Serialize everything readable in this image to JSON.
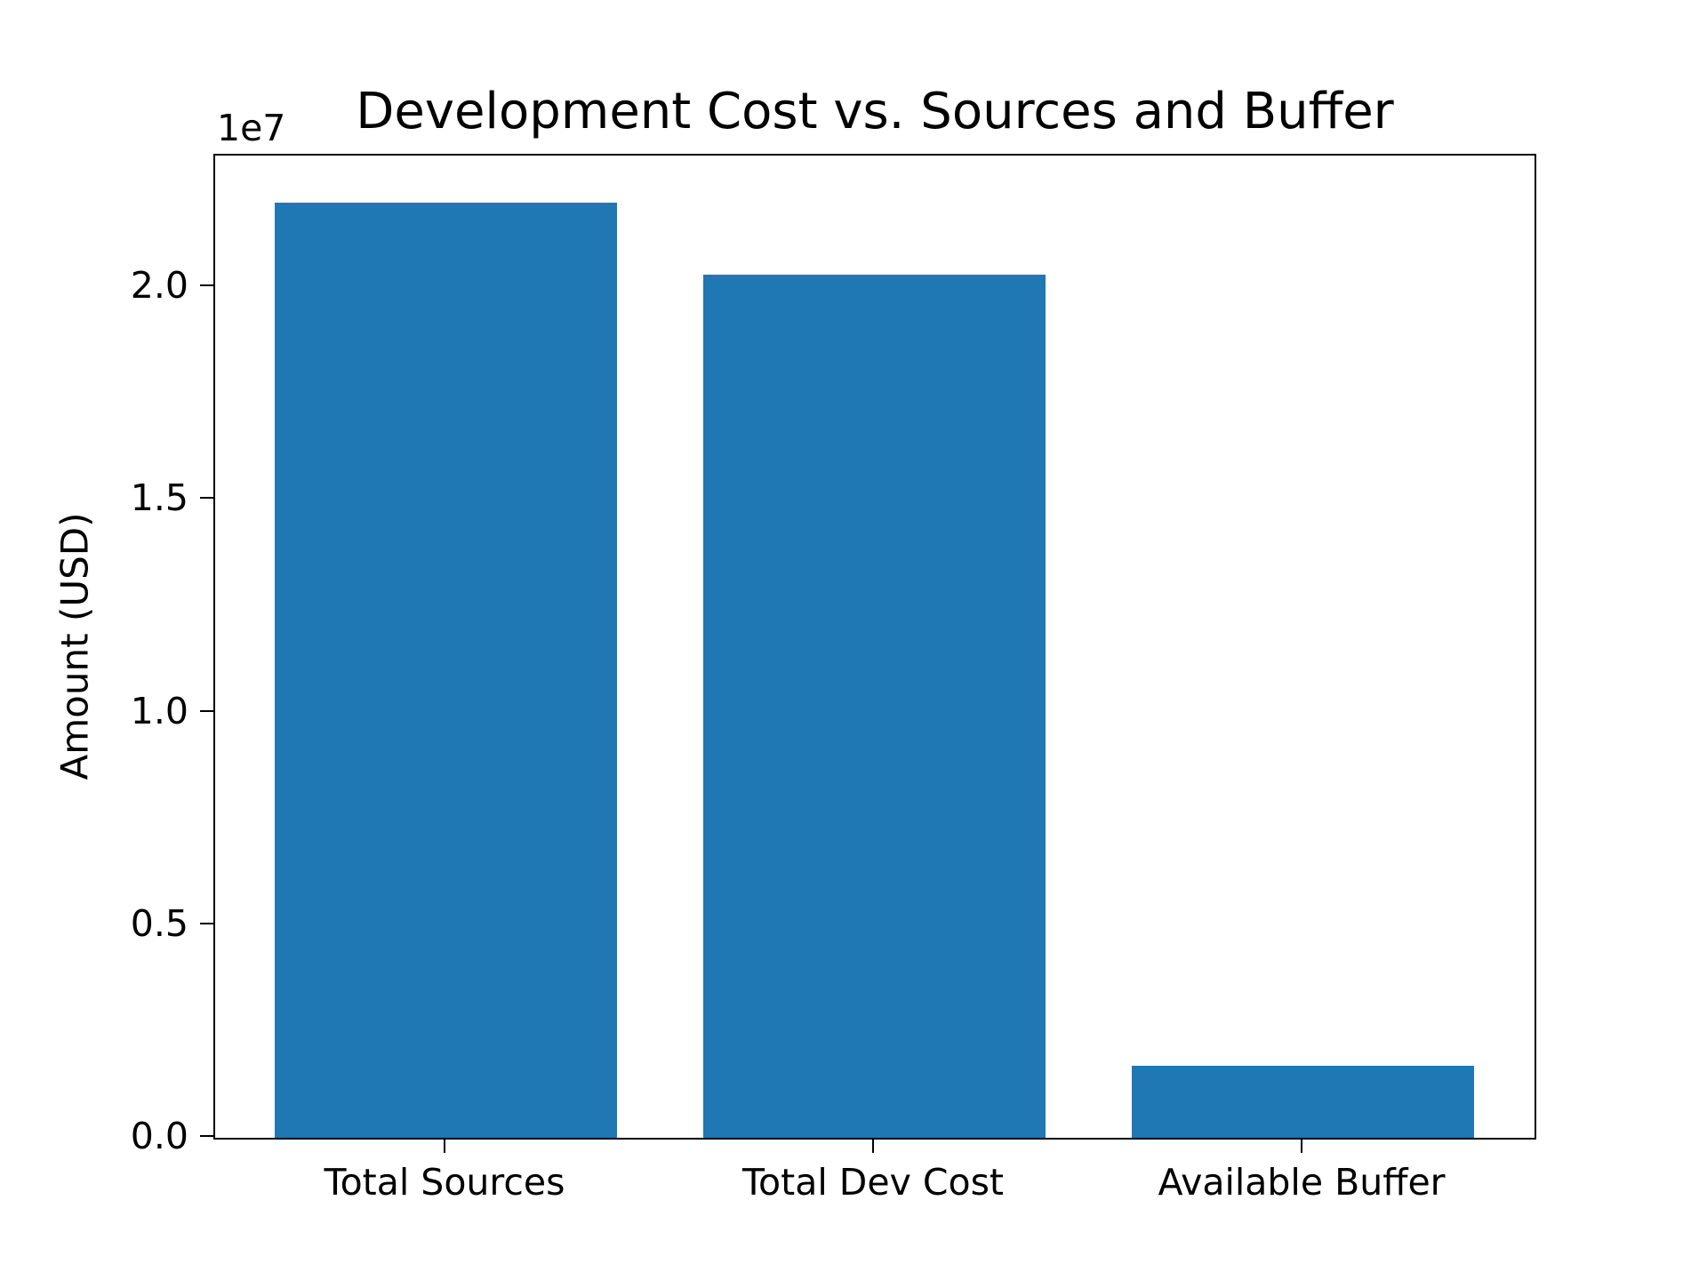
{
  "chart_data": {
    "type": "bar",
    "title": "Development Cost vs. Sources and Buffer",
    "ylabel": "Amount (USD)",
    "xlabel": "",
    "offset_text": "1e7",
    "categories": [
      "Total Sources",
      "Total Dev Cost",
      "Available Buffer"
    ],
    "values": [
      22000000,
      20300000,
      1700000
    ],
    "ylim": [
      0,
      23100000
    ],
    "yticks": [
      {
        "value": 0,
        "label": "0.0"
      },
      {
        "value": 5000000,
        "label": "0.5"
      },
      {
        "value": 10000000,
        "label": "1.0"
      },
      {
        "value": 15000000,
        "label": "1.5"
      },
      {
        "value": 20000000,
        "label": "2.0"
      }
    ],
    "bar_color": "#1f77b4",
    "axis_color": "#000000",
    "background_color": "#ffffff",
    "grid": false,
    "legend": null
  }
}
